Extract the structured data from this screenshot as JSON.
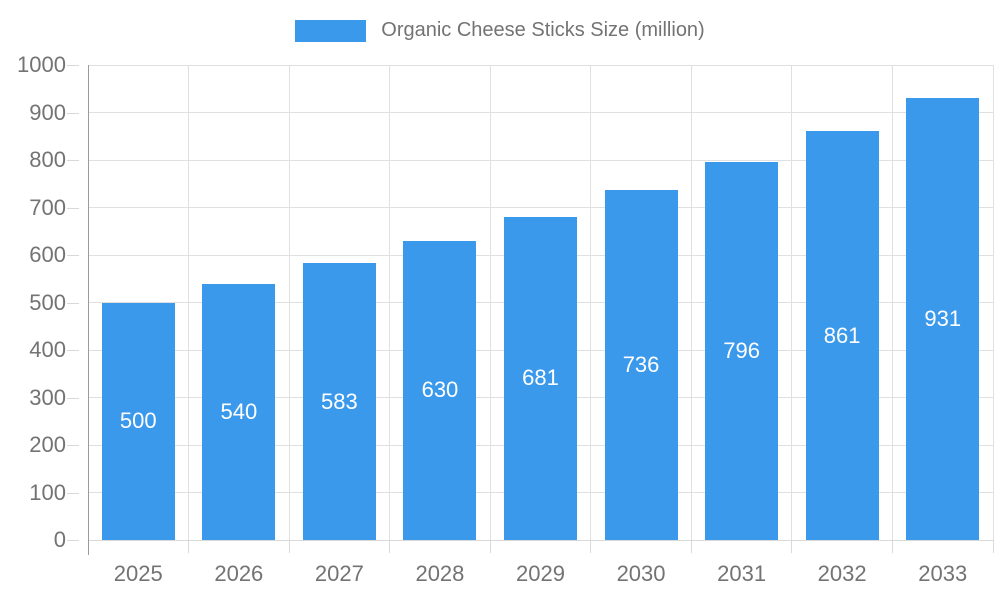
{
  "chart_data": {
    "type": "bar",
    "title": "Organic Cheese Sticks Size (million)",
    "categories": [
      "2025",
      "2026",
      "2027",
      "2028",
      "2029",
      "2030",
      "2031",
      "2032",
      "2033"
    ],
    "values": [
      500,
      540,
      583,
      630,
      681,
      736,
      796,
      861,
      931
    ],
    "xlabel": "",
    "ylabel": "",
    "ylim": [
      0,
      1000
    ],
    "ytick_step": 100,
    "ytick_labels": [
      "0",
      "100",
      "200",
      "300",
      "400",
      "500",
      "600",
      "700",
      "800",
      "900",
      "1000"
    ],
    "grid": true,
    "legend_position": "top-center",
    "value_labels": "inside-center"
  },
  "colors": {
    "bar": "#3b99ec",
    "bar_value_text": "#ffffff",
    "grid": "#e0e0e0",
    "tick": "#d9d9d9",
    "y_axis_line": "#9b9b9b",
    "x_axis_line": "#d9d9d9",
    "axis_text": "#737373",
    "legend_text": "#737373",
    "background": "#ffffff"
  }
}
